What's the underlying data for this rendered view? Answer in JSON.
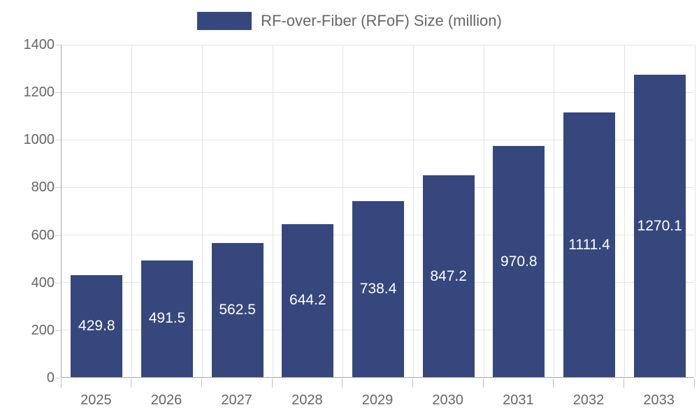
{
  "legend": {
    "label": "RF-over-Fiber (RFoF) Size (million)"
  },
  "chart_data": {
    "type": "bar",
    "title": "RF-over-Fiber (RFoF) Size (million)",
    "categories": [
      "2025",
      "2026",
      "2027",
      "2028",
      "2029",
      "2030",
      "2031",
      "2032",
      "2033"
    ],
    "values": [
      429.8,
      491.5,
      562.5,
      644.2,
      738.4,
      847.2,
      970.8,
      1111.4,
      1270.1
    ],
    "xlabel": "",
    "ylabel": "",
    "ylim": [
      0,
      1400
    ],
    "ytick_step": 200,
    "yticks": [
      0,
      200,
      400,
      600,
      800,
      1000,
      1200,
      1400
    ],
    "grid": true,
    "legend_position": "top-center",
    "colors": {
      "bar": "#36477D",
      "bar_label": "#ffffff",
      "gridline": "#e4e4e4",
      "axis_line": "#a6a6a6",
      "axis_text": "#666666",
      "background": "#ffffff"
    }
  }
}
